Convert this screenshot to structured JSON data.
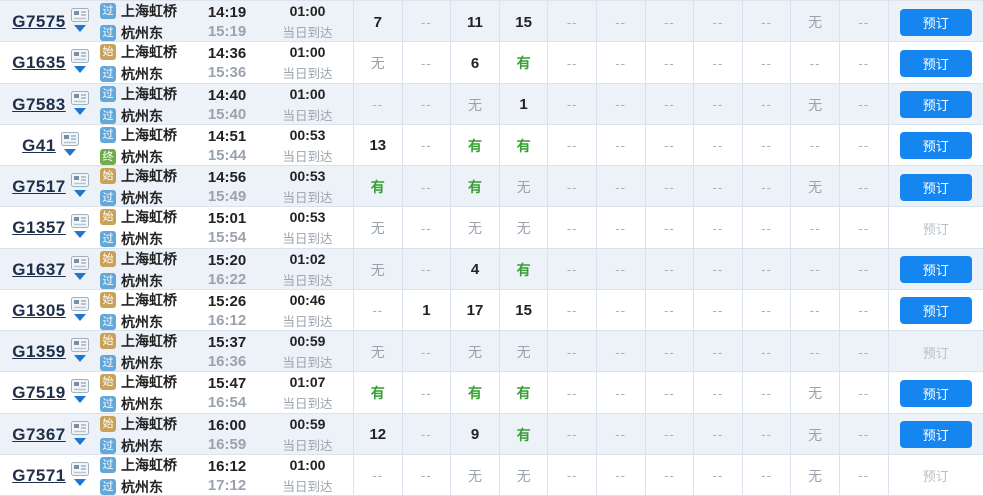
{
  "labels": {
    "book": "预订",
    "same_day": "当日到达"
  },
  "colors": {
    "accent_blue": "#1585f0",
    "available_green": "#35a033",
    "muted_gray": "#9aa3ad",
    "badge_pass_blue": "#64a8da",
    "badge_start_orange": "#c9a158",
    "badge_end_green": "#72ad4c",
    "train_link_navy": "#20304a",
    "shaded_row": "#edf2f8",
    "grid_line": "#d9e3ee"
  },
  "badge_glyphs": {
    "pass": "过",
    "start": "始",
    "end": "终"
  },
  "rows": [
    {
      "train": "G7575",
      "from_badge": "pass",
      "from": "上海虹桥",
      "to_badge": "pass",
      "to": "杭州东",
      "depart": "14:19",
      "arrive": "15:19",
      "duration": "01:00",
      "arrive_note": "当日到达",
      "seats": [
        "7",
        "--",
        "11",
        "15",
        "--",
        "--",
        "--",
        "--",
        "--",
        "无",
        "--"
      ],
      "bookable": true
    },
    {
      "train": "G1635",
      "from_badge": "start",
      "from": "上海虹桥",
      "to_badge": "pass",
      "to": "杭州东",
      "depart": "14:36",
      "arrive": "15:36",
      "duration": "01:00",
      "arrive_note": "当日到达",
      "seats": [
        "无",
        "--",
        "6",
        "有",
        "--",
        "--",
        "--",
        "--",
        "--",
        "--",
        "--"
      ],
      "bookable": true
    },
    {
      "train": "G7583",
      "from_badge": "pass",
      "from": "上海虹桥",
      "to_badge": "pass",
      "to": "杭州东",
      "depart": "14:40",
      "arrive": "15:40",
      "duration": "01:00",
      "arrive_note": "当日到达",
      "seats": [
        "--",
        "--",
        "无",
        "1",
        "--",
        "--",
        "--",
        "--",
        "--",
        "无",
        "--"
      ],
      "bookable": true
    },
    {
      "train": "G41",
      "from_badge": "pass",
      "from": "上海虹桥",
      "to_badge": "end",
      "to": "杭州东",
      "depart": "14:51",
      "arrive": "15:44",
      "duration": "00:53",
      "arrive_note": "当日到达",
      "seats": [
        "13",
        "--",
        "有",
        "有",
        "--",
        "--",
        "--",
        "--",
        "--",
        "--",
        "--"
      ],
      "bookable": true
    },
    {
      "train": "G7517",
      "from_badge": "start",
      "from": "上海虹桥",
      "to_badge": "pass",
      "to": "杭州东",
      "depart": "14:56",
      "arrive": "15:49",
      "duration": "00:53",
      "arrive_note": "当日到达",
      "seats": [
        "有",
        "--",
        "有",
        "无",
        "--",
        "--",
        "--",
        "--",
        "--",
        "无",
        "--"
      ],
      "bookable": true
    },
    {
      "train": "G1357",
      "from_badge": "start",
      "from": "上海虹桥",
      "to_badge": "pass",
      "to": "杭州东",
      "depart": "15:01",
      "arrive": "15:54",
      "duration": "00:53",
      "arrive_note": "当日到达",
      "seats": [
        "无",
        "--",
        "无",
        "无",
        "--",
        "--",
        "--",
        "--",
        "--",
        "--",
        "--"
      ],
      "bookable": false
    },
    {
      "train": "G1637",
      "from_badge": "start",
      "from": "上海虹桥",
      "to_badge": "pass",
      "to": "杭州东",
      "depart": "15:20",
      "arrive": "16:22",
      "duration": "01:02",
      "arrive_note": "当日到达",
      "seats": [
        "无",
        "--",
        "4",
        "有",
        "--",
        "--",
        "--",
        "--",
        "--",
        "--",
        "--"
      ],
      "bookable": true
    },
    {
      "train": "G1305",
      "from_badge": "start",
      "from": "上海虹桥",
      "to_badge": "pass",
      "to": "杭州东",
      "depart": "15:26",
      "arrive": "16:12",
      "duration": "00:46",
      "arrive_note": "当日到达",
      "seats": [
        "--",
        "1",
        "17",
        "15",
        "--",
        "--",
        "--",
        "--",
        "--",
        "--",
        "--"
      ],
      "bookable": true
    },
    {
      "train": "G1359",
      "from_badge": "start",
      "from": "上海虹桥",
      "to_badge": "pass",
      "to": "杭州东",
      "depart": "15:37",
      "arrive": "16:36",
      "duration": "00:59",
      "arrive_note": "当日到达",
      "seats": [
        "无",
        "--",
        "无",
        "无",
        "--",
        "--",
        "--",
        "--",
        "--",
        "--",
        "--"
      ],
      "bookable": false
    },
    {
      "train": "G7519",
      "from_badge": "start",
      "from": "上海虹桥",
      "to_badge": "pass",
      "to": "杭州东",
      "depart": "15:47",
      "arrive": "16:54",
      "duration": "01:07",
      "arrive_note": "当日到达",
      "seats": [
        "有",
        "--",
        "有",
        "有",
        "--",
        "--",
        "--",
        "--",
        "--",
        "无",
        "--"
      ],
      "bookable": true
    },
    {
      "train": "G7367",
      "from_badge": "start",
      "from": "上海虹桥",
      "to_badge": "pass",
      "to": "杭州东",
      "depart": "16:00",
      "arrive": "16:59",
      "duration": "00:59",
      "arrive_note": "当日到达",
      "seats": [
        "12",
        "--",
        "9",
        "有",
        "--",
        "--",
        "--",
        "--",
        "--",
        "无",
        "--"
      ],
      "bookable": true
    },
    {
      "train": "G7571",
      "from_badge": "pass",
      "from": "上海虹桥",
      "to_badge": "pass",
      "to": "杭州东",
      "depart": "16:12",
      "arrive": "17:12",
      "duration": "01:00",
      "arrive_note": "当日到达",
      "seats": [
        "--",
        "--",
        "无",
        "无",
        "--",
        "--",
        "--",
        "--",
        "--",
        "无",
        "--"
      ],
      "bookable": false
    }
  ]
}
